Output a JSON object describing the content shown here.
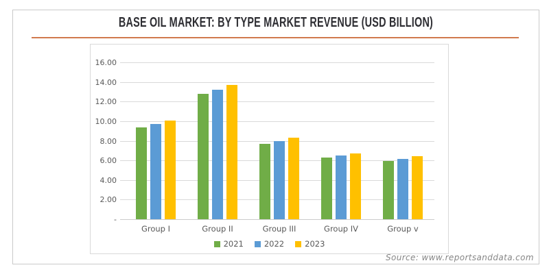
{
  "page": {
    "title": "BASE OIL MARKET: BY TYPE MARKET REVENUE (USD BILLION)",
    "source": "Source: www.reportsanddata.com"
  },
  "colors": {
    "accent_line": "#d0794d",
    "grid": "#d9d9d9",
    "axis_text": "#595959",
    "chart_border": "#d9d9d9",
    "outer_border": "#c9c9c9"
  },
  "chart_data": {
    "type": "bar",
    "title": "BASE OIL MARKET: BY TYPE MARKET REVENUE (USD BILLION)",
    "categories": [
      "Group I",
      "Group II",
      "Group III",
      "Group IV",
      "Group v"
    ],
    "series": [
      {
        "name": "2021",
        "color": "#70AD47",
        "values": [
          9.35,
          12.8,
          7.7,
          6.3,
          5.95
        ]
      },
      {
        "name": "2022",
        "color": "#5B9BD5",
        "values": [
          9.7,
          13.25,
          8.0,
          6.5,
          6.15
        ]
      },
      {
        "name": "2023",
        "color": "#FFC000",
        "values": [
          10.05,
          13.7,
          8.35,
          6.7,
          6.4
        ]
      }
    ],
    "xlabel": "",
    "ylabel": "",
    "y_axis": {
      "min": 0,
      "max": 16,
      "step": 2,
      "tick_labels": [
        "-",
        "2.00",
        "4.00",
        "6.00",
        "8.00",
        "10.00",
        "12.00",
        "14.00",
        "16.00"
      ]
    },
    "legend": [
      "2021",
      "2022",
      "2023"
    ],
    "legend_position": "bottom",
    "grid": true
  }
}
